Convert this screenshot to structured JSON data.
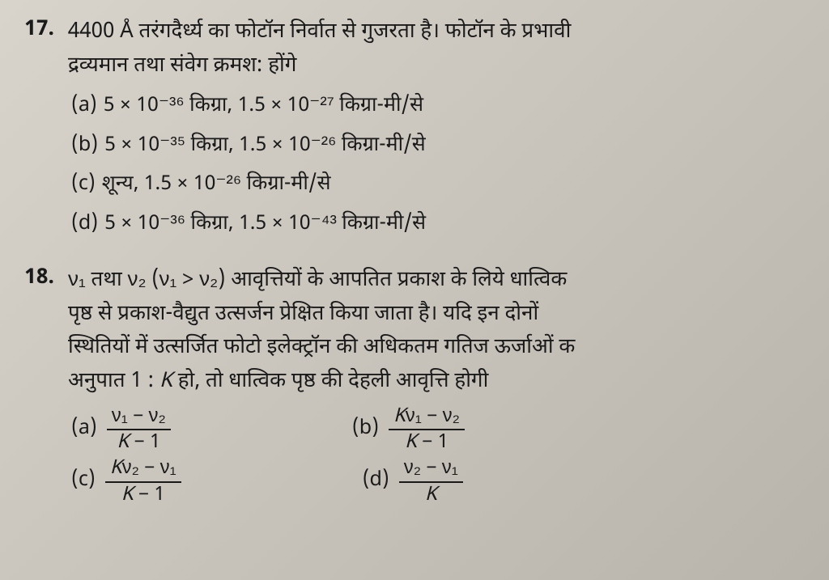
{
  "q17": {
    "number": "17.",
    "line1_part1": "4400 Å तरंगदैर्ध्य का फोटॉन निर्वात से गुजरता है। फोटॉन के प्रभावी",
    "line2": "द्रव्यमान तथा संवेग क्रमश: होंगे",
    "options": {
      "a_label": "(a)",
      "a_text": "5 × 10⁻³⁶ किग्रा, 1.5 × 10⁻²⁷ किग्रा-मी/से",
      "b_label": "(b)",
      "b_text": "5 × 10⁻³⁵ किग्रा, 1.5 × 10⁻²⁶ किग्रा-मी/से",
      "c_label": "(c)",
      "c_text": "शून्य, 1.5 × 10⁻²⁶ किग्रा-मी/से",
      "d_label": "(d)",
      "d_text": "5 × 10⁻³⁶ किग्रा, 1.5 × 10⁻⁴³ किग्रा-मी/से"
    }
  },
  "q18": {
    "number": "18.",
    "line1": "ν₁ तथा ν₂ (ν₁ > ν₂) आवृत्तियों के आपतित प्रकाश के लिये धात्विक",
    "line2": "पृष्ठ से प्रकाश-वैद्युत उत्सर्जन प्रेक्षित किया जाता है। यदि इन दोनों",
    "line3": "स्थितियों में उत्सर्जित फोटो इलेक्ट्रॉन की अधिकतम गतिज ऊर्जाओं क",
    "line4_part1": "अनुपात 1 : ",
    "line4_K": "K",
    "line4_part2": " हो, तो धात्विक पृष्ठ की देहली आवृत्ति होगी",
    "options": {
      "a_label": "(a)",
      "a_num": "ν₁ − ν₂",
      "a_den_K": "K",
      "a_den_rest": " − 1",
      "b_label": "(b)",
      "b_num_K": "K",
      "b_num_rest": "ν₁ − ν₂",
      "b_den_K": "K",
      "b_den_rest": " − 1",
      "c_label": "(c)",
      "c_num_K": "K",
      "c_num_rest": "ν₂ − ν₁",
      "c_den_K": "K",
      "c_den_rest": " − 1",
      "d_label": "(d)",
      "d_num": "ν₂ − ν₁",
      "d_den_K": "K"
    }
  },
  "colors": {
    "text": "#1a1a1a",
    "background_start": "#d8d4cc",
    "background_end": "#b8b4ac"
  }
}
